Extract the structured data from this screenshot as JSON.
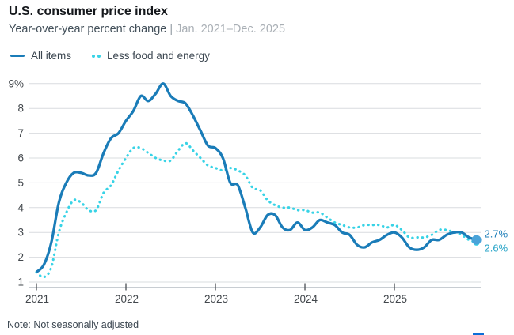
{
  "header": {
    "title": "U.S. consumer price index",
    "subtitle_main": "Year-over-year percent change",
    "subtitle_separator": "|",
    "subtitle_range": "Jan. 2021–Dec. 2025"
  },
  "note": "Note: Not seasonally adjusted",
  "chart_data": {
    "type": "line",
    "title": "U.S. consumer price index",
    "subtitle": "Year-over-year percent change | Jan. 2021–Dec. 2025",
    "x_start": "Jan 2021",
    "x_end": "Dec 2025",
    "x_frequency": "monthly",
    "x_tick_labels": [
      "2021",
      "2022",
      "2023",
      "2024",
      "2025"
    ],
    "y_ticks": [
      1,
      2,
      3,
      4,
      5,
      6,
      7,
      8,
      9
    ],
    "y_tick_labels": [
      "9%",
      "8",
      "7",
      "6",
      "5",
      "4",
      "3",
      "2",
      "1"
    ],
    "ylim": [
      0.7,
      9.3
    ],
    "grid": "horizontal",
    "legend_position": "top-left",
    "series": [
      {
        "name": "All items",
        "style": "solid",
        "color": "#1a7cb8",
        "values": [
          1.4,
          1.7,
          2.6,
          4.2,
          5.0,
          5.4,
          5.4,
          5.3,
          5.4,
          6.2,
          6.8,
          7.0,
          7.5,
          7.9,
          8.5,
          8.3,
          8.6,
          9.0,
          8.5,
          8.3,
          8.2,
          7.7,
          7.1,
          6.5,
          6.4,
          6.0,
          5.0,
          4.9,
          4.0,
          3.0,
          3.2,
          3.7,
          3.7,
          3.2,
          3.1,
          3.4,
          3.1,
          3.2,
          3.5,
          3.4,
          3.3,
          3.0,
          2.9,
          2.5,
          2.4,
          2.6,
          2.7,
          2.9,
          3.0,
          2.8,
          2.4,
          2.3,
          2.4,
          2.7,
          2.7,
          2.9,
          3.0,
          3.0,
          2.8,
          2.7
        ]
      },
      {
        "name": "Less food and energy",
        "style": "dotted",
        "color": "#38d3e6",
        "values": [
          1.4,
          1.2,
          1.6,
          3.0,
          3.8,
          4.3,
          4.2,
          3.9,
          3.9,
          4.6,
          4.9,
          5.5,
          6.0,
          6.4,
          6.4,
          6.2,
          6.0,
          5.9,
          5.9,
          6.3,
          6.6,
          6.3,
          6.0,
          5.7,
          5.6,
          5.5,
          5.6,
          5.5,
          5.3,
          4.8,
          4.7,
          4.3,
          4.1,
          4.0,
          4.0,
          3.9,
          3.9,
          3.8,
          3.8,
          3.6,
          3.4,
          3.3,
          3.2,
          3.2,
          3.3,
          3.3,
          3.3,
          3.2,
          3.3,
          3.1,
          2.8,
          2.8,
          2.8,
          2.9,
          3.1,
          3.1,
          3.0,
          2.9,
          2.7,
          2.6
        ]
      }
    ],
    "end_labels": [
      {
        "text": "2.7%",
        "series": "All items",
        "value": 2.7,
        "color": "#2180ba"
      },
      {
        "text": "2.6%",
        "series": "Less food and energy",
        "value": 2.6,
        "color": "#29a5c8"
      }
    ],
    "style": {
      "grid_color": "#d9dcdf",
      "axis_color": "#c8cdd2",
      "tick_color": "#4a4e53",
      "marker_color": "#4aa3d9",
      "end_dot_core_color": "#38d3e6"
    },
    "note": "Note: Not seasonally adjusted"
  },
  "footer": {
    "brand_bar_color": "#0d6fd8"
  }
}
